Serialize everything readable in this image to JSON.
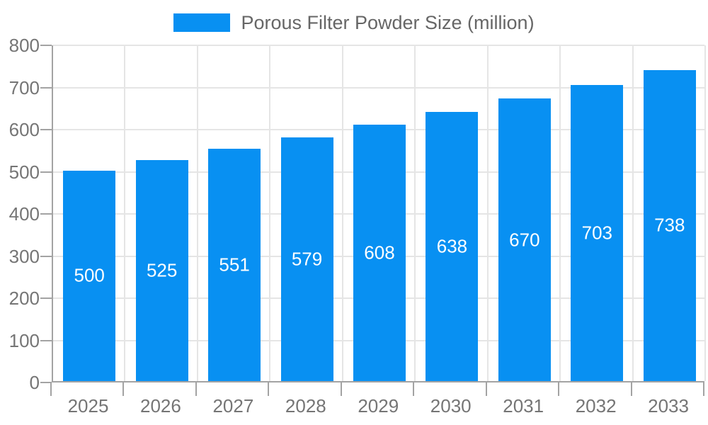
{
  "chart_data": {
    "type": "bar",
    "title": "Porous Filter Powder Size (million)",
    "legend": [
      "Porous Filter Powder Size (million)"
    ],
    "legend_position": "top-center",
    "categories": [
      "2025",
      "2026",
      "2027",
      "2028",
      "2029",
      "2030",
      "2031",
      "2032",
      "2033"
    ],
    "values": [
      500,
      525,
      551,
      579,
      608,
      638,
      670,
      703,
      738
    ],
    "xlabel": "",
    "ylabel": "",
    "ylim": [
      0,
      800
    ],
    "yticks": [
      0,
      100,
      200,
      300,
      400,
      500,
      600,
      700,
      800
    ],
    "grid": true,
    "bar_value_labels": [
      "500",
      "525",
      "551",
      "579",
      "608",
      "638",
      "670",
      "703",
      "738"
    ]
  },
  "colors": {
    "bar": "#0890f2",
    "bar_label": "#ffffff",
    "grid": "#e5e5e5",
    "axis": "#a3a3a3",
    "tick_text": "#757575",
    "legend_text": "#666666",
    "background": "#ffffff"
  }
}
